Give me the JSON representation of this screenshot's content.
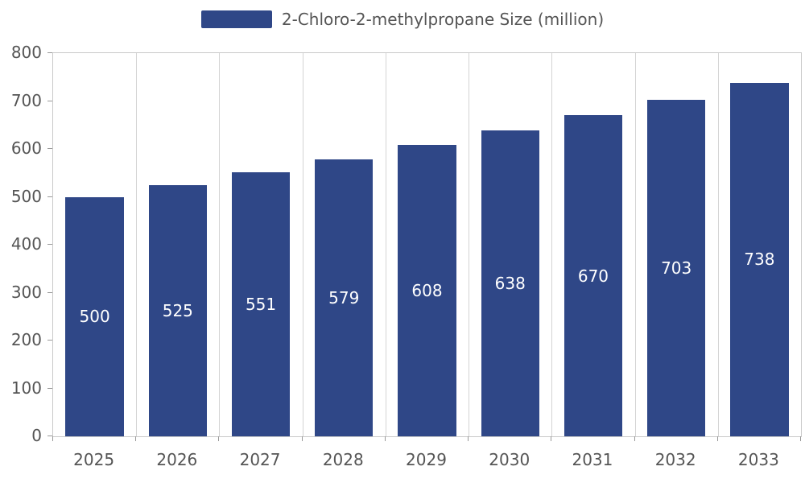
{
  "legend": {
    "label": "2-Chloro-2-methylpropane Size (million)"
  },
  "chart_data": {
    "type": "bar",
    "title": "2-Chloro-2-methylpropane Size (million)",
    "categories": [
      "2025",
      "2026",
      "2027",
      "2028",
      "2029",
      "2030",
      "2031",
      "2032",
      "2033"
    ],
    "values": [
      500,
      525,
      551,
      579,
      608,
      638,
      670,
      703,
      738
    ],
    "xlabel": "",
    "ylabel": "",
    "ylim": [
      0,
      800
    ],
    "ytick_step": 100,
    "grid": "vertical",
    "legend_position": "top",
    "bar_color": "#2f4787",
    "bar_label_color": "#ffffff",
    "axis_text_color": "#555555"
  }
}
